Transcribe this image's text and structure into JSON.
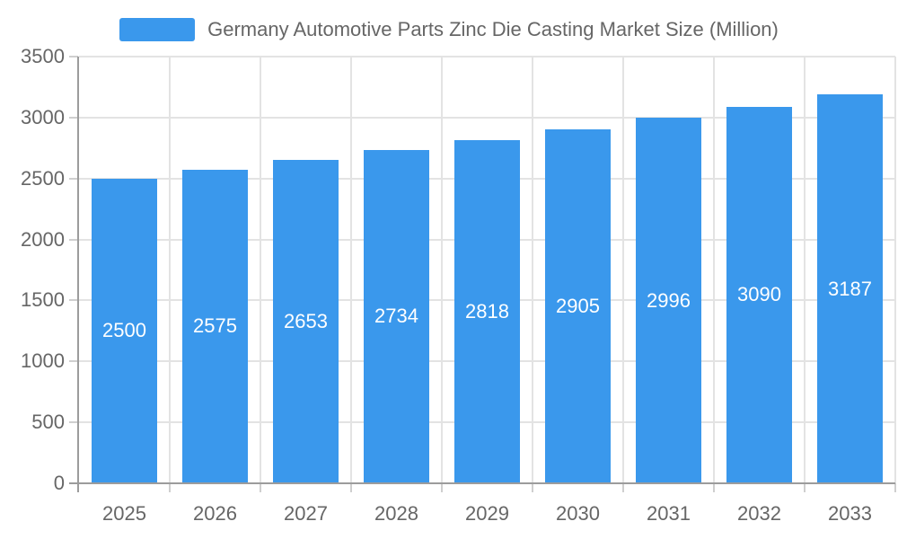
{
  "chart_data": {
    "type": "bar",
    "title": "Germany Automotive Parts Zinc Die Casting Market Size (Million)",
    "legend": {
      "position": "top",
      "entries": [
        "Germany Automotive Parts Zinc Die Casting Market Size (Million)"
      ]
    },
    "categories": [
      "2025",
      "2026",
      "2027",
      "2028",
      "2029",
      "2030",
      "2031",
      "2032",
      "2033"
    ],
    "series": [
      {
        "name": "Germany Automotive Parts Zinc Die Casting Market Size (Million)",
        "values": [
          2500,
          2575,
          2653,
          2734,
          2818,
          2905,
          2996,
          3090,
          3187
        ]
      }
    ],
    "data_labels_shown": true,
    "xlabel": "",
    "ylabel": "",
    "ylim": [
      0,
      3500
    ],
    "yticks": [
      0,
      500,
      1000,
      1500,
      2000,
      2500,
      3000,
      3500
    ],
    "grid": true,
    "colors": {
      "bar": "#3a98ec",
      "bar_label_text": "#ffffff",
      "grid_line": "#e3e3e3",
      "axis_line": "#9c9c9c",
      "tick_mark": "#cfcfcf",
      "tick_text": "#666666",
      "legend_text": "#666666",
      "background": "#ffffff"
    }
  }
}
